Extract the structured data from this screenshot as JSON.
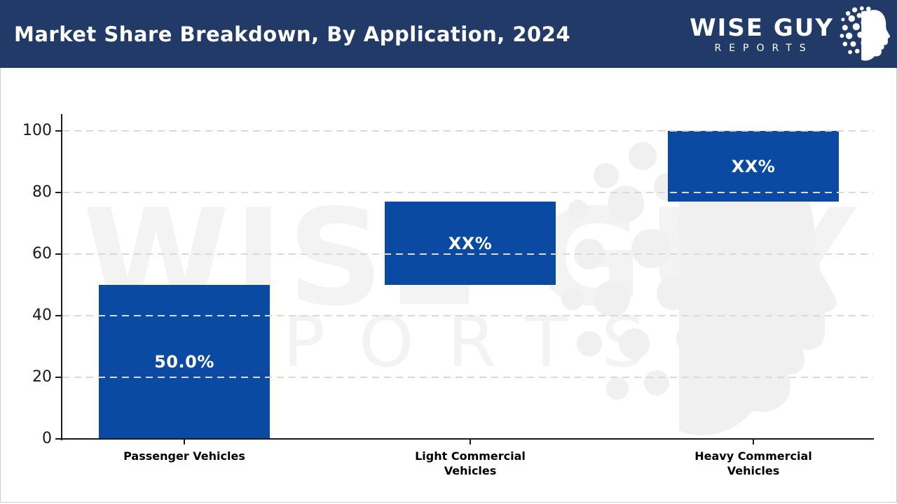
{
  "header": {
    "title": "Market Share Breakdown, By Application, 2024",
    "logo": {
      "line1": "WISE GUY",
      "line2": "REPORTS"
    }
  },
  "watermark": {
    "line1": "WISE GUY",
    "line2": "REPORTS"
  },
  "chart_data": {
    "type": "bar",
    "subtype": "floating-waterfall",
    "title": "Market Share Breakdown, By Application, 2024",
    "categories": [
      [
        "Passenger Vehicles"
      ],
      [
        "Light Commercial",
        "Vehicles"
      ],
      [
        "Heavy Commercial",
        "Vehicles"
      ]
    ],
    "segments": [
      {
        "category": "Passenger Vehicles",
        "start": 0,
        "end": 50,
        "label": "50.0%"
      },
      {
        "category": "Light Commercial Vehicles",
        "start": 50,
        "end": 77,
        "label": "XX%"
      },
      {
        "category": "Heavy Commercial Vehicles",
        "start": 77,
        "end": 100,
        "label": "XX%"
      }
    ],
    "ylim": [
      0,
      100
    ],
    "yticks": [
      0,
      20,
      40,
      60,
      80,
      100
    ],
    "grid": "horizontal-dashed",
    "legend": "none",
    "xlabel": "",
    "ylabel": "",
    "bar_color": "#0b4aa2",
    "bar_label_color": "#ffffff",
    "axis_color": "#1a1a1a",
    "grid_color": "#d9d9d9",
    "header_bg_color": "#223a67",
    "watermark_color": "#f3f3f3"
  }
}
